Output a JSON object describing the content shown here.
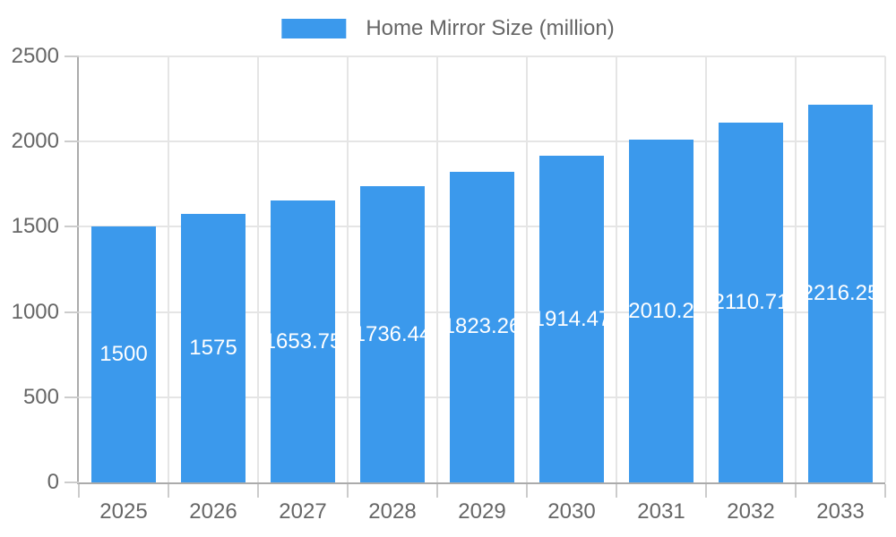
{
  "chart_data": {
    "type": "bar",
    "title": "Home Mirror Size (million)",
    "categories": [
      "2025",
      "2026",
      "2027",
      "2028",
      "2029",
      "2030",
      "2031",
      "2032",
      "2033"
    ],
    "values": [
      1500,
      1575,
      1653.75,
      1736.44,
      1823.26,
      1914.47,
      2010.2,
      2110.71,
      2216.25
    ],
    "value_labels": [
      "1500",
      "1575",
      "1653.75",
      "1736.44",
      "1823.26",
      "1914.47",
      "2010.2",
      "2110.71",
      "2216.25"
    ],
    "xlabel": "",
    "ylabel": "",
    "ylim": [
      0,
      2500
    ],
    "yticks": [
      0,
      500,
      1000,
      1500,
      2000,
      2500
    ],
    "grid": true,
    "legend_position": "top-center",
    "colors": {
      "bar": "#3B99EC",
      "bar_label": "#FFFFFF",
      "tick_text": "#666666",
      "grid_line": "#E5E5E5",
      "tick_mark": "#CCCCCC",
      "axis_line": "#ABABAB",
      "background": "#FFFFFF"
    }
  }
}
